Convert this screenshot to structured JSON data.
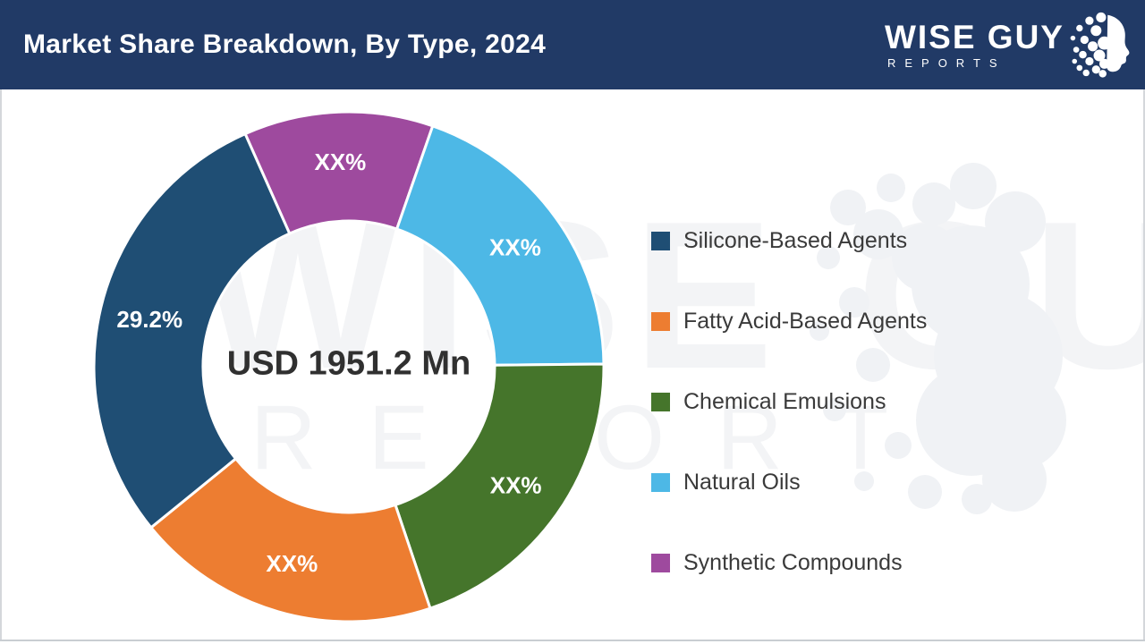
{
  "header": {
    "title": "Market Share Breakdown, By Type, 2024",
    "background_color": "#213A66",
    "logo": {
      "line1": "WISE GUY",
      "line2": "REPORTS"
    }
  },
  "watermark": {
    "line1": "WISE GUY",
    "line2": "REPORTS"
  },
  "chart_data": {
    "type": "pie",
    "subtype": "donut",
    "title": "Market Share Breakdown, By Type, 2024",
    "center_label": "USD 1951.2 Mn",
    "legend_position": "right",
    "start_angle_deg": -24,
    "direction": "counterclockwise-from-start-in-legend-order",
    "series": [
      {
        "name": "Silicone-Based Agents",
        "label": "29.2%",
        "value": 29.2,
        "color": "#1F4E74"
      },
      {
        "name": "Fatty Acid-Based Agents",
        "label": "XX%",
        "value": 19.3,
        "color": "#ED7D31"
      },
      {
        "name": "Chemical Emulsions",
        "label": "XX%",
        "value": 20.0,
        "color": "#45752B"
      },
      {
        "name": "Natural Oils",
        "label": "XX%",
        "value": 19.5,
        "color": "#4DB8E6"
      },
      {
        "name": "Synthetic Compounds",
        "label": "XX%",
        "value": 12.0,
        "color": "#9E4A9E"
      }
    ]
  }
}
